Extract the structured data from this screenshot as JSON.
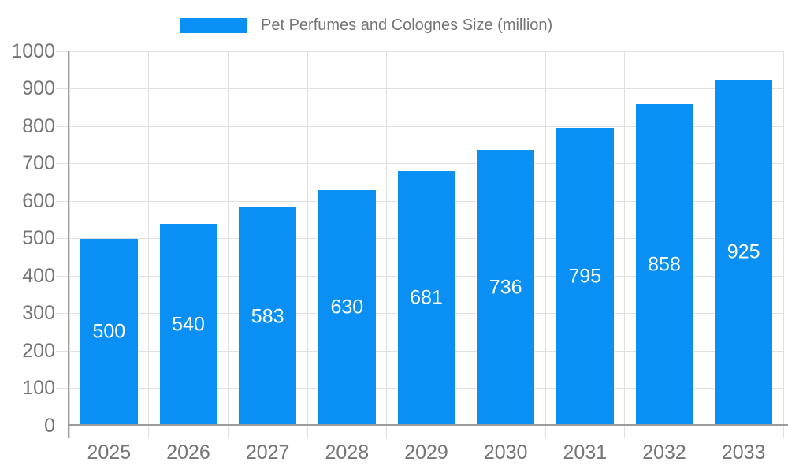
{
  "legend": {
    "label": "Pet Perfumes and Colognes Size (million)",
    "swatch_color": "#0a8ff5"
  },
  "chart_data": {
    "type": "bar",
    "title": "Pet Perfumes and Colognes Size (million)",
    "series_label": "Pet Perfumes and Colognes Size (million)",
    "categories": [
      "2025",
      "2026",
      "2027",
      "2028",
      "2029",
      "2030",
      "2031",
      "2032",
      "2033"
    ],
    "values": [
      500,
      540,
      583,
      630,
      681,
      736,
      795,
      858,
      925
    ],
    "xlabel": "",
    "ylabel": "",
    "ylim": [
      0,
      1000
    ],
    "ytick_step": 100,
    "yticks": [
      0,
      100,
      200,
      300,
      400,
      500,
      600,
      700,
      800,
      900,
      1000
    ],
    "grid": true,
    "legend_position": "top",
    "bar_color": "#0a8ff5",
    "value_label_color": "#ffffff",
    "axis_text_color": "#757575",
    "gridline_color": "#e0e0e0",
    "axis_line_color": "#9b9b9b"
  }
}
